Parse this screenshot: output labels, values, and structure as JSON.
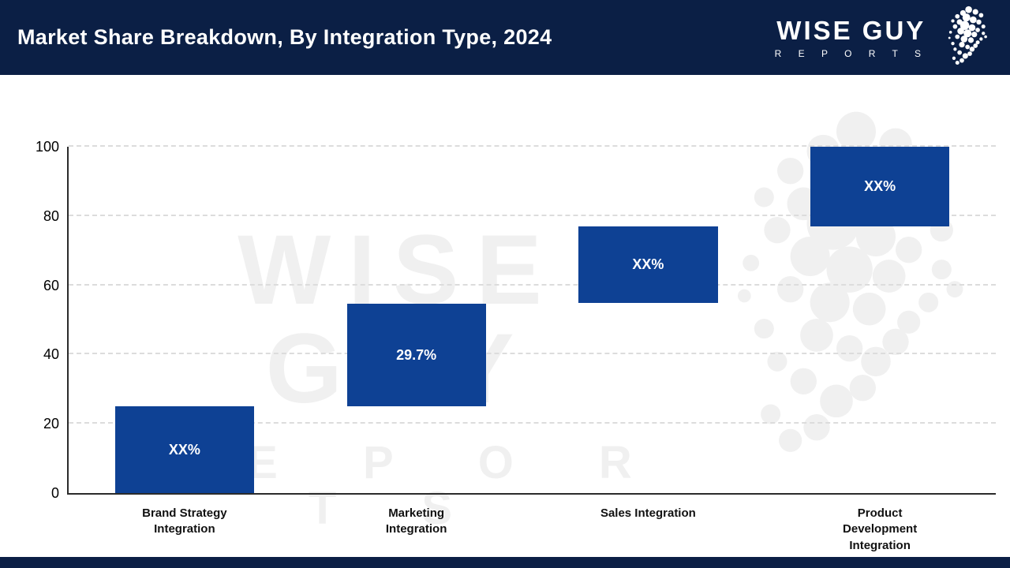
{
  "header": {
    "title": "Market Share Breakdown, By Integration Type, 2024",
    "logo": {
      "line1": "WISE GUY",
      "line2": "R E P O R T S"
    }
  },
  "watermark": {
    "line1": "WISE GUY",
    "line2": "R E P O R T S"
  },
  "colors": {
    "header_bg": "#0b1f45",
    "footer_bg": "#0b1f45",
    "bar": "#0e4194",
    "bar_label": "#ffffff",
    "watermark": "#f0f0f0",
    "gridline": "#dcdcdc"
  },
  "chart_data": {
    "type": "bar",
    "subtype": "floating-waterfall",
    "title": "Market Share Breakdown, By Integration Type, 2024",
    "categories": [
      "Brand Strategy Integration",
      "Marketing Integration",
      "Sales Integration",
      "Product Development Integration"
    ],
    "segments": [
      {
        "category": "Brand Strategy Integration",
        "start": 0,
        "end": 25,
        "label": "XX%"
      },
      {
        "category": "Marketing Integration",
        "start": 25,
        "end": 54.7,
        "label": "29.7%"
      },
      {
        "category": "Sales Integration",
        "start": 55,
        "end": 77,
        "label": "XX%"
      },
      {
        "category": "Product Development Integration",
        "start": 77,
        "end": 100,
        "label": "XX%"
      }
    ],
    "ylim": [
      0,
      100
    ],
    "yticks": [
      0,
      20,
      40,
      60,
      80,
      100
    ],
    "xlabel": "",
    "ylabel": "",
    "grid": "horizontal-dashed",
    "legend": "none"
  }
}
